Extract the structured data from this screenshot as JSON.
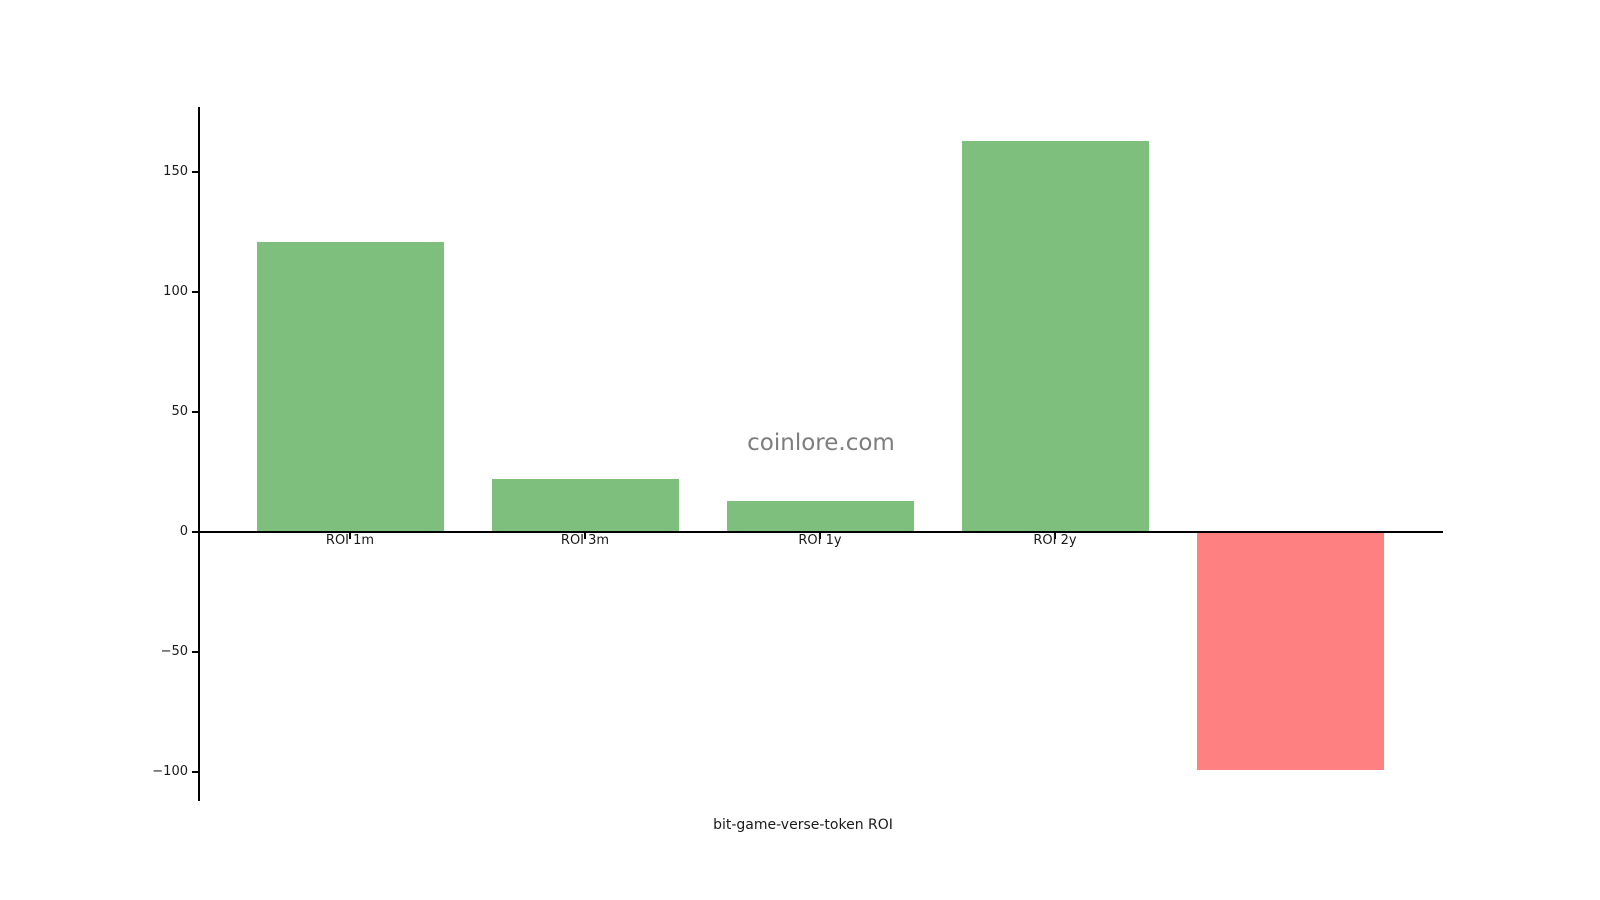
{
  "watermark": {
    "text": "coinlore.com",
    "color": "#7d7d7d"
  },
  "chart_data": {
    "type": "bar",
    "title": "bit-game-verse-token ROI",
    "xlabel": "bit-game-verse-token ROI",
    "ylabel": "",
    "categories": [
      "ROI 1m",
      "ROI 3m",
      "ROI 1y",
      "ROI 2y",
      ""
    ],
    "values": [
      121,
      22,
      13,
      163,
      -99
    ],
    "positive_color": "#7ebf7e",
    "negative_color": "#ff8080",
    "axis_color": "#000000",
    "tick_label_color": "#1a1a1a",
    "yticks": [
      150,
      100,
      50,
      0,
      -50,
      -100
    ],
    "ylim": [
      -112,
      177
    ],
    "grid": false,
    "legend": "none",
    "watermark": "coinlore.com"
  }
}
